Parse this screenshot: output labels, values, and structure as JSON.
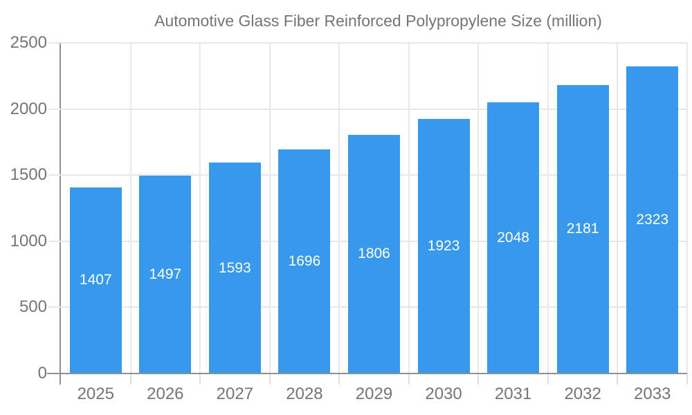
{
  "page": {
    "background": "#ffffff"
  },
  "legend": {
    "swatch_color": "#3899ec",
    "position": "top-center"
  },
  "chart_data": {
    "type": "bar",
    "title": "Automotive Glass Fiber Reinforced Polypropylene Size (million)",
    "categories": [
      "2025",
      "2026",
      "2027",
      "2028",
      "2029",
      "2030",
      "2031",
      "2032",
      "2033"
    ],
    "values": [
      1407,
      1497,
      1593,
      1696,
      1806,
      1923,
      2048,
      2181,
      2323
    ],
    "xlabel": "",
    "ylabel": "",
    "ylim": [
      0,
      2500
    ],
    "yticks": [
      0,
      500,
      1000,
      1500,
      2000,
      2500
    ],
    "grid": true,
    "legend_position": "top",
    "bar_color": "#3899ec",
    "bar_label_color": "#ffffff",
    "axis_text_color": "#757575",
    "axis_line_color": "#8f8f8f",
    "grid_color": "#e7e7e7"
  }
}
